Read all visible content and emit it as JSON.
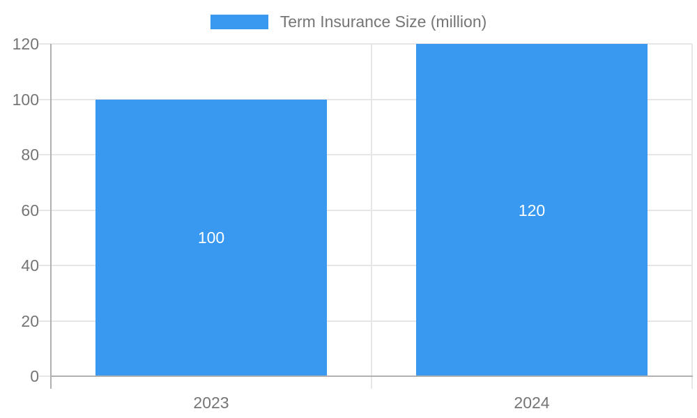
{
  "legend": {
    "label": "Term Insurance Size (million)"
  },
  "chart_data": {
    "type": "bar",
    "categories": [
      "2023",
      "2024"
    ],
    "series": [
      {
        "name": "Term Insurance Size (million)",
        "values": [
          100,
          120
        ]
      }
    ],
    "value_labels": [
      "100",
      "120"
    ],
    "title": "",
    "xlabel": "",
    "ylabel": "",
    "ylim": [
      0,
      120
    ],
    "yticks": [
      0,
      20,
      40,
      60,
      80,
      100,
      120
    ],
    "grid": true,
    "legend_position": "top-center",
    "colors": {
      "bar": "#3999F0",
      "value_label": "#FFFFFF",
      "axis_text": "#757575",
      "gridline": "#E6E6E6",
      "axis_line": "#B0B0B0",
      "background": "#FFFFFF"
    }
  }
}
